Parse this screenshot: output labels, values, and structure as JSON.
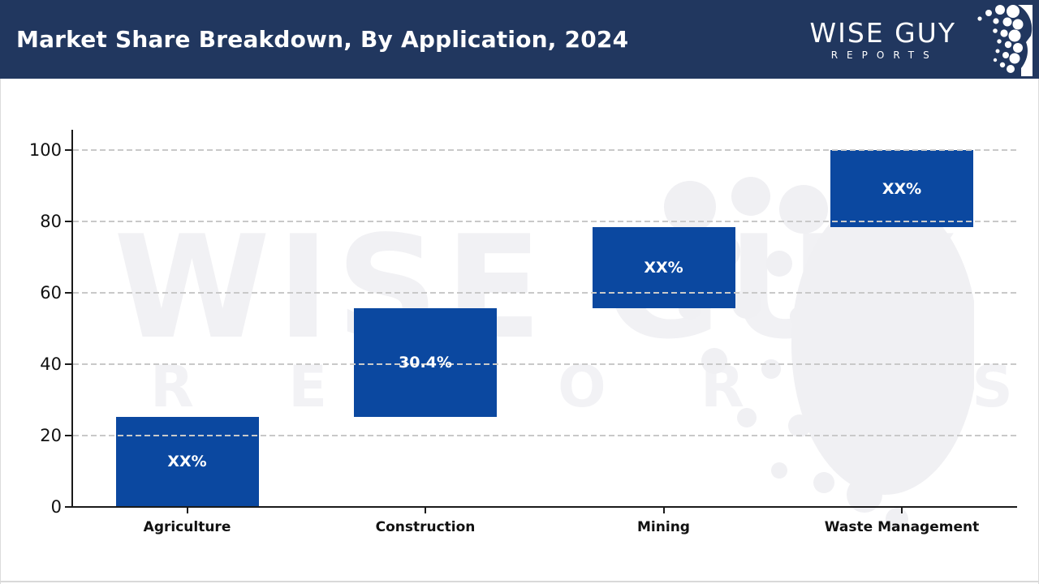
{
  "header": {
    "title": "Market Share Breakdown, By Application, 2024",
    "logo": {
      "line1": "WISE GUY",
      "line2": "REPORTS"
    }
  },
  "watermark": {
    "line1": "WISE GUY",
    "line2": "R E P O R T S"
  },
  "colors": {
    "header_bg": "#21375F",
    "bar": "#0B48A0",
    "grid": "#c9c9c9",
    "axis": "#1a1a1a",
    "bar_label": "#ffffff"
  },
  "chart_data": {
    "type": "bar",
    "variant": "waterfall",
    "title": "Market Share Breakdown, By Application, 2024",
    "categories": [
      "Agriculture",
      "Construction",
      "Mining",
      "Waste Management"
    ],
    "segments": [
      {
        "category": "Agriculture",
        "start": 0,
        "end": 25.3,
        "value": 25.3,
        "label": "XX%"
      },
      {
        "category": "Construction",
        "start": 25.3,
        "end": 55.7,
        "value": 30.4,
        "label": "30.4%"
      },
      {
        "category": "Mining",
        "start": 55.7,
        "end": 78.3,
        "value": 22.6,
        "label": "XX%"
      },
      {
        "category": "Waste Management",
        "start": 78.3,
        "end": 100,
        "value": 21.7,
        "label": "XX%"
      }
    ],
    "y_ticks": [
      0,
      20,
      40,
      60,
      80,
      100
    ],
    "ylim": [
      0,
      100
    ],
    "xlabel": "",
    "ylabel": "",
    "grid": "horizontal-dashed",
    "legend": "none",
    "bar_color": "#0B48A0"
  }
}
